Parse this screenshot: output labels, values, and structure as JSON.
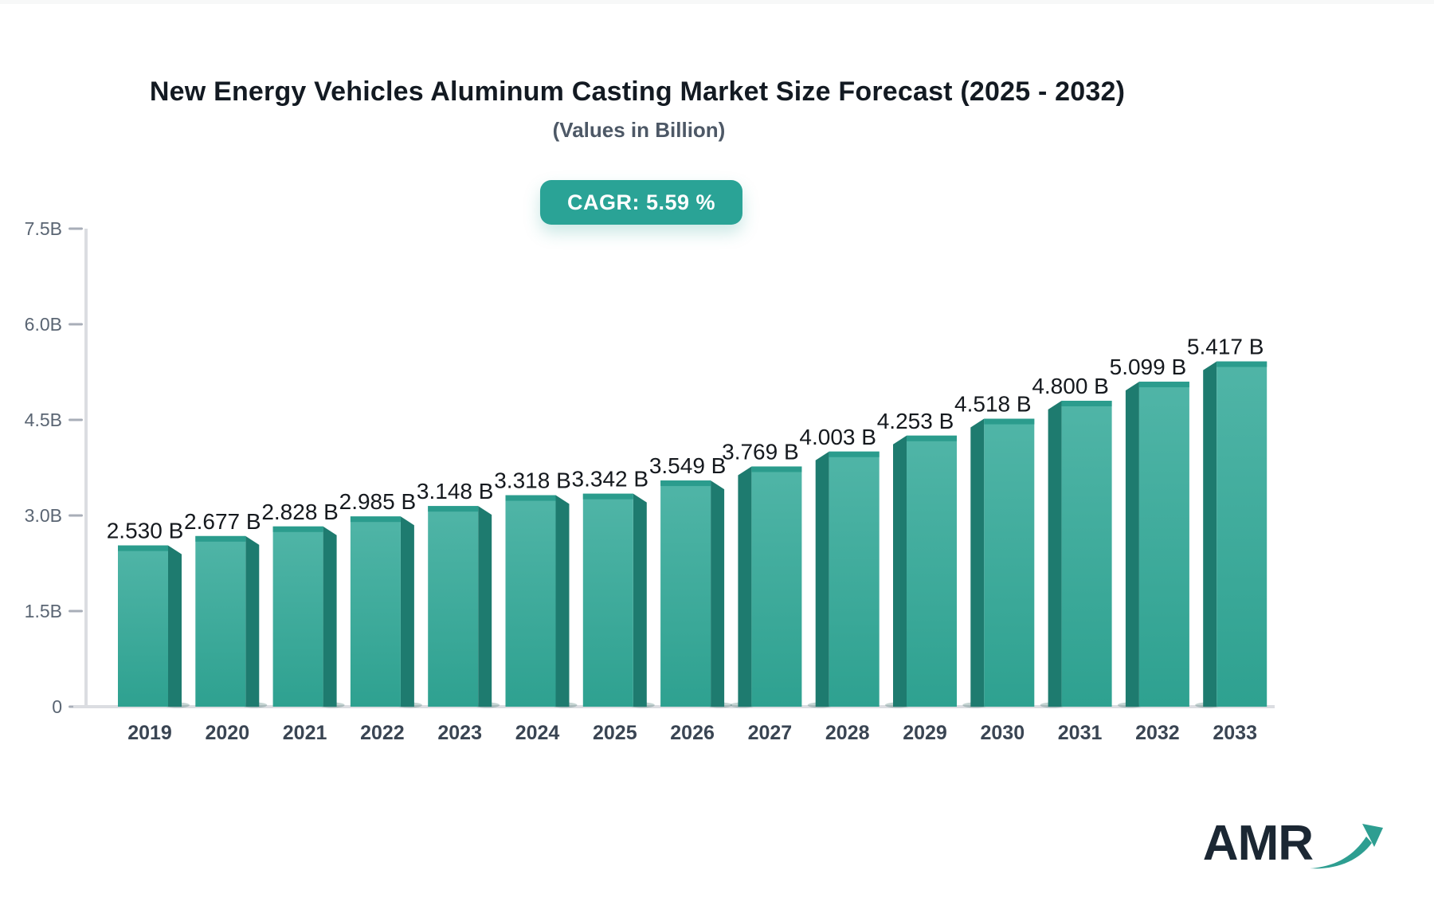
{
  "title": "New Energy Vehicles Aluminum Casting Market Size Forecast (2025 - 2032)",
  "subtitle": "(Values in Billion)",
  "badge": {
    "label": "CAGR: 5.59 %"
  },
  "logo": {
    "text": "AMR"
  },
  "chart_data": {
    "type": "bar",
    "title": "New Energy Vehicles Aluminum Casting Market Size Forecast (2025 - 2032)",
    "subtitle": "(Values in Billion)",
    "unit": "Billion",
    "cagr_percent": 5.59,
    "categories": [
      "2019",
      "2020",
      "2021",
      "2022",
      "2023",
      "2024",
      "2025",
      "2026",
      "2027",
      "2028",
      "2029",
      "2030",
      "2031",
      "2032",
      "2033"
    ],
    "values": [
      2.53,
      2.677,
      2.828,
      2.985,
      3.148,
      3.318,
      3.342,
      3.549,
      3.769,
      4.003,
      4.253,
      4.518,
      4.8,
      5.099,
      5.417
    ],
    "value_labels": [
      "2.530 B",
      "2.677 B",
      "2.828 B",
      "2.985 B",
      "3.148 B",
      "3.318 B",
      "3.342 B",
      "3.549 B",
      "3.769 B",
      "4.003 B",
      "4.253 B",
      "4.518 B",
      "4.800 B",
      "5.099 B",
      "5.417 B"
    ],
    "xlabel": "",
    "ylabel": "",
    "ylim": [
      0,
      7.5
    ],
    "y_ticks": [
      {
        "label": "0",
        "value": 0
      },
      {
        "label": "1.5B",
        "value": 1.5
      },
      {
        "label": "3.0B",
        "value": 3.0
      },
      {
        "label": "4.5B",
        "value": 4.5
      },
      {
        "label": "6.0B",
        "value": 6.0
      },
      {
        "label": "7.5B",
        "value": 7.5
      }
    ],
    "grid": false,
    "legend": "none",
    "colors": {
      "bar_front_top": "#50B5A7",
      "bar_front_bottom": "#2EA190",
      "bar_side": "#1E7B6F",
      "bar_top_band": "#2B9C8D",
      "bar_shadow": "#14544B",
      "badge_bg": "#2AA396",
      "axis_line": "#DBDDE1",
      "tick_dash": "#A8AEB8",
      "y_label": "#5A6573",
      "x_label": "#3A4553",
      "value_label": "#15191E",
      "title": "#131A22",
      "subtitle": "#4D5866",
      "logo_text": "#1B2733",
      "logo_arrow": "#2E9E91"
    }
  }
}
